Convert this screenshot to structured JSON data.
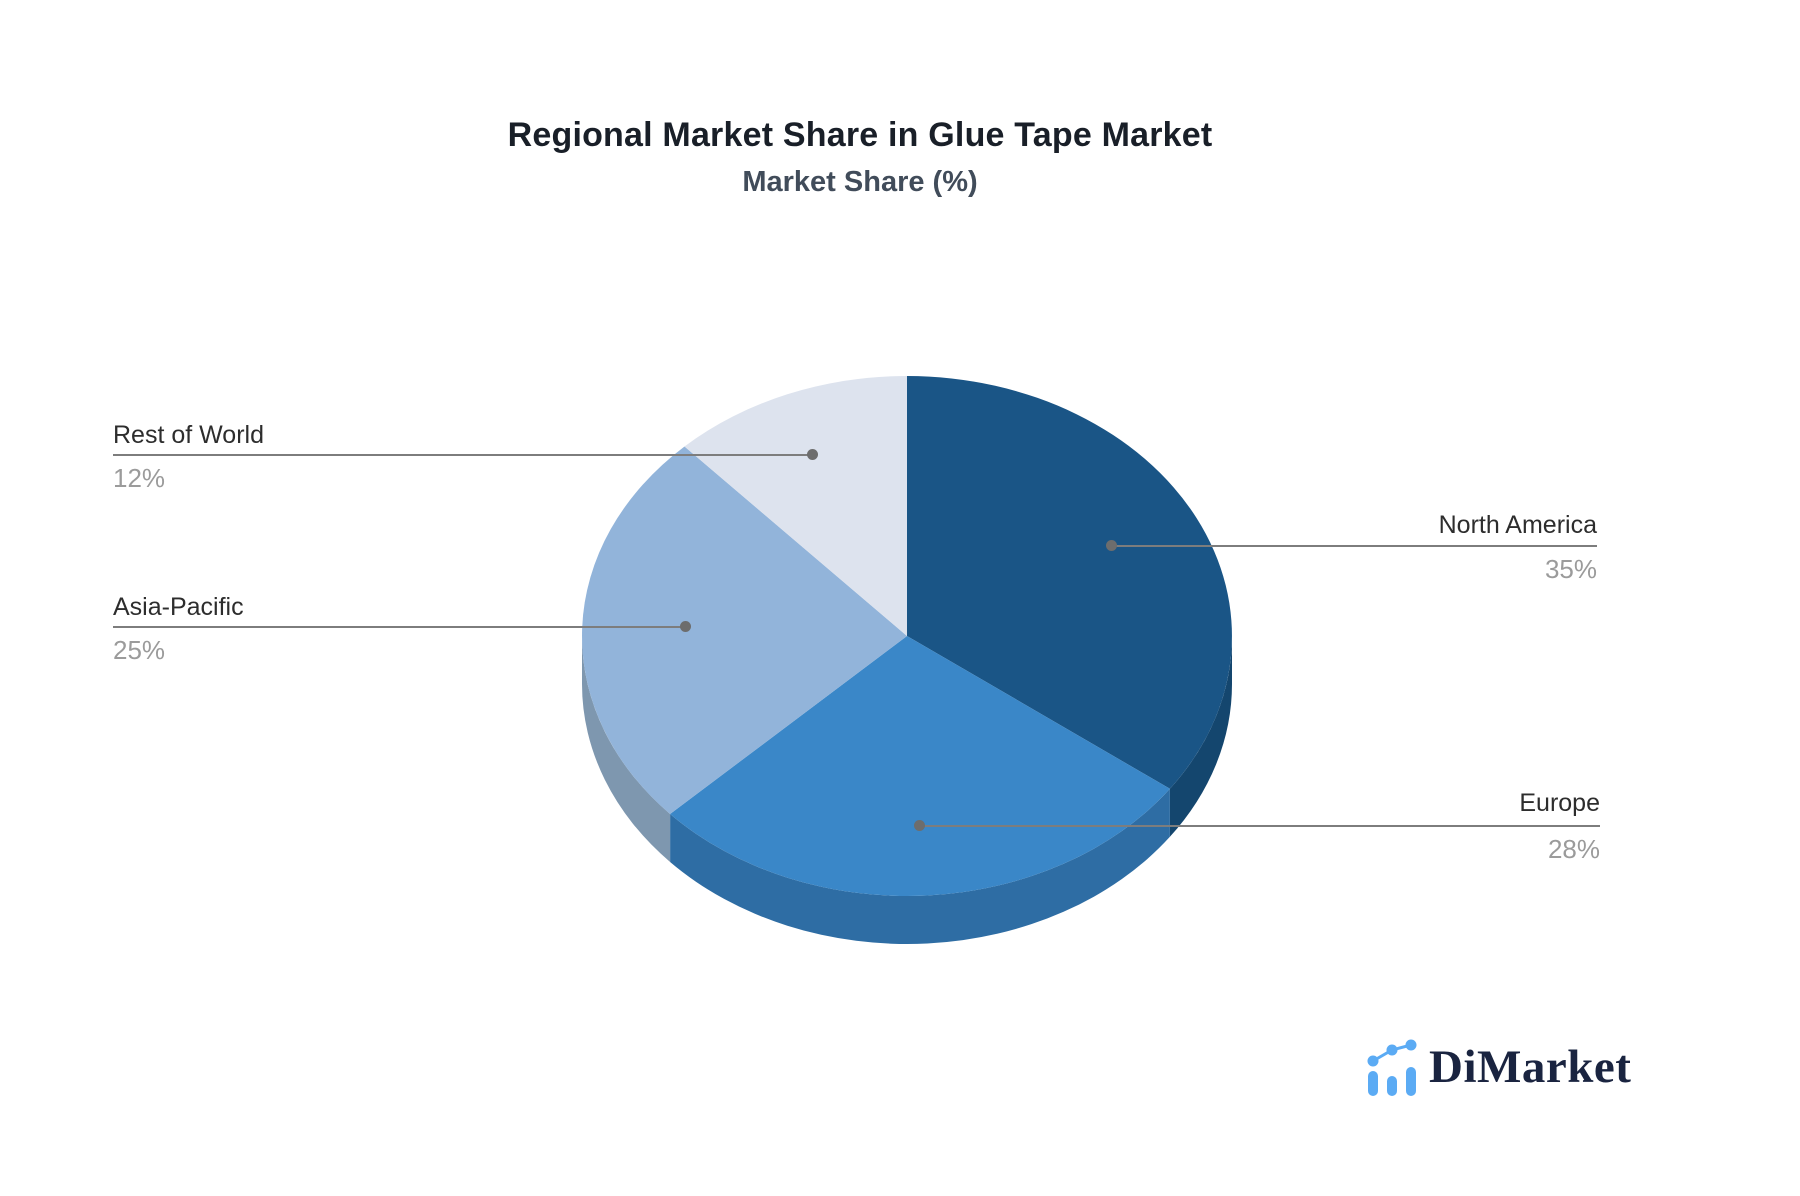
{
  "chart_data": {
    "type": "pie",
    "style": "3d",
    "title": "Regional Market Share in Glue Tape Market",
    "subtitle": "Market Share (%)",
    "unit": "%",
    "start_angle_deg": 0,
    "direction": "clockwise",
    "legend_position": "callout-labels",
    "slices": [
      {
        "label": "North America",
        "value": 35,
        "pct_label": "35%",
        "color": "#1a5586",
        "side_color": "#14466e"
      },
      {
        "label": "Europe",
        "value": 28,
        "pct_label": "28%",
        "color": "#3a87c8",
        "side_color": "#2e6da4"
      },
      {
        "label": "Asia-Pacific",
        "value": 25,
        "pct_label": "25%",
        "color": "#92b4da",
        "side_color": "#7e97af"
      },
      {
        "label": "Rest of World",
        "value": 12,
        "pct_label": "12%",
        "color": "#dde3ee",
        "side_color": "#b9c3d4"
      }
    ]
  },
  "branding": {
    "logo_text": "DiMarket",
    "logo_icon": "bar-line-chart-icon",
    "logo_icon_color": "#5babf4",
    "logo_text_color": "#1a2440"
  },
  "colors": {
    "background": "#ffffff",
    "title": "#191f28",
    "subtitle": "#414c5a",
    "label_text": "#2d2d2d",
    "pct_text": "#9b9b9b",
    "connector": "#7d7d7d"
  }
}
